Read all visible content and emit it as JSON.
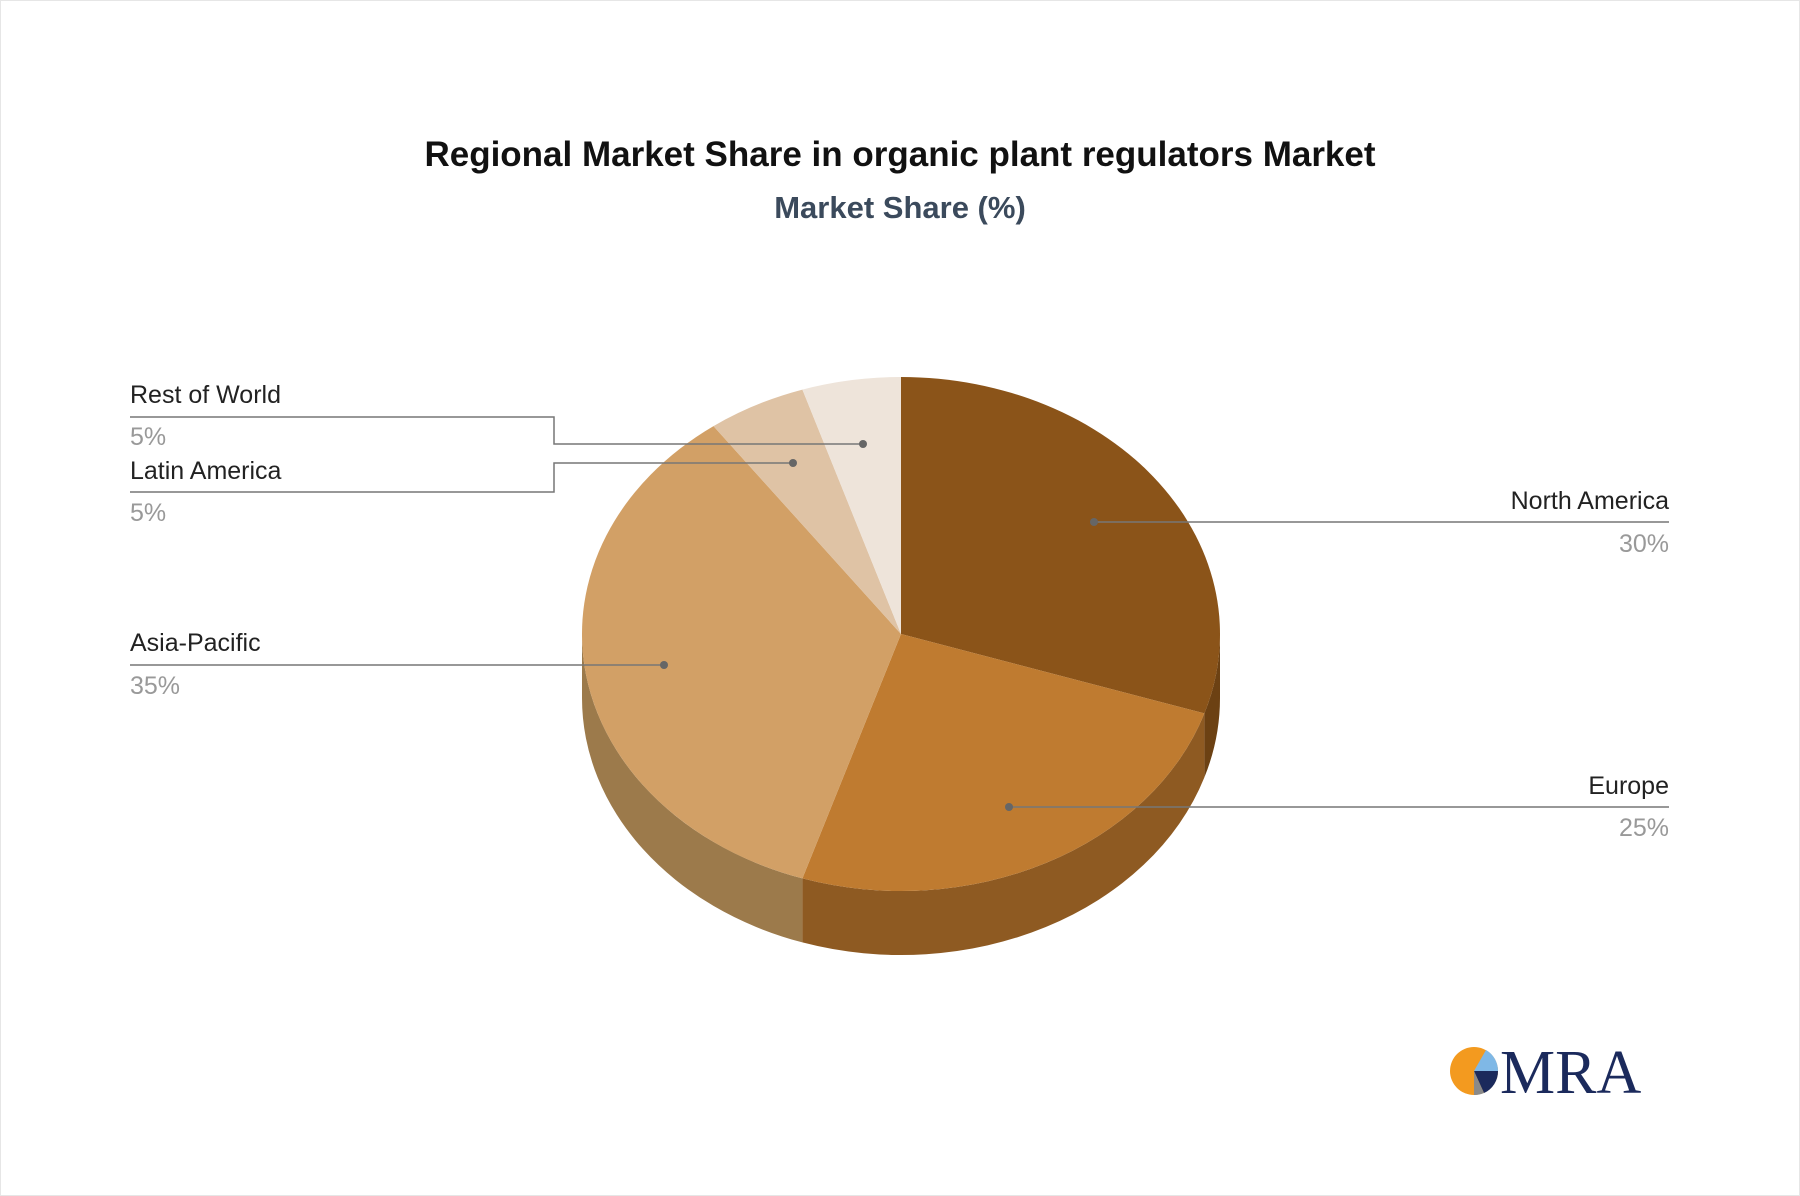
{
  "chart_data": {
    "type": "pie",
    "style": "3d",
    "title": "Regional Market Share in organic plant regulators Market",
    "subtitle": "Market Share (%)",
    "slices": [
      {
        "label": "North America",
        "value": 30,
        "display": "30%",
        "color": "#8B5419",
        "side": "#6C4113"
      },
      {
        "label": "Europe",
        "value": 25,
        "display": "25%",
        "color": "#BF7B30",
        "side": "#8E5A22"
      },
      {
        "label": "Asia-Pacific",
        "value": 35,
        "display": "35%",
        "color": "#D2A066",
        "side": "#9C7A4B"
      },
      {
        "label": "Latin America",
        "value": 5,
        "display": "5%",
        "color": "#DFC3A5",
        "side": "#B39A80"
      },
      {
        "label": "Rest of World",
        "value": 5,
        "display": "5%",
        "color": "#EEE4DA",
        "side": "#C4BAB0"
      }
    ]
  },
  "logo": {
    "text": "MRA",
    "colors": {
      "orange": "#F39A1F",
      "navy": "#1B2A5C",
      "light_blue": "#7FB8E6"
    }
  }
}
